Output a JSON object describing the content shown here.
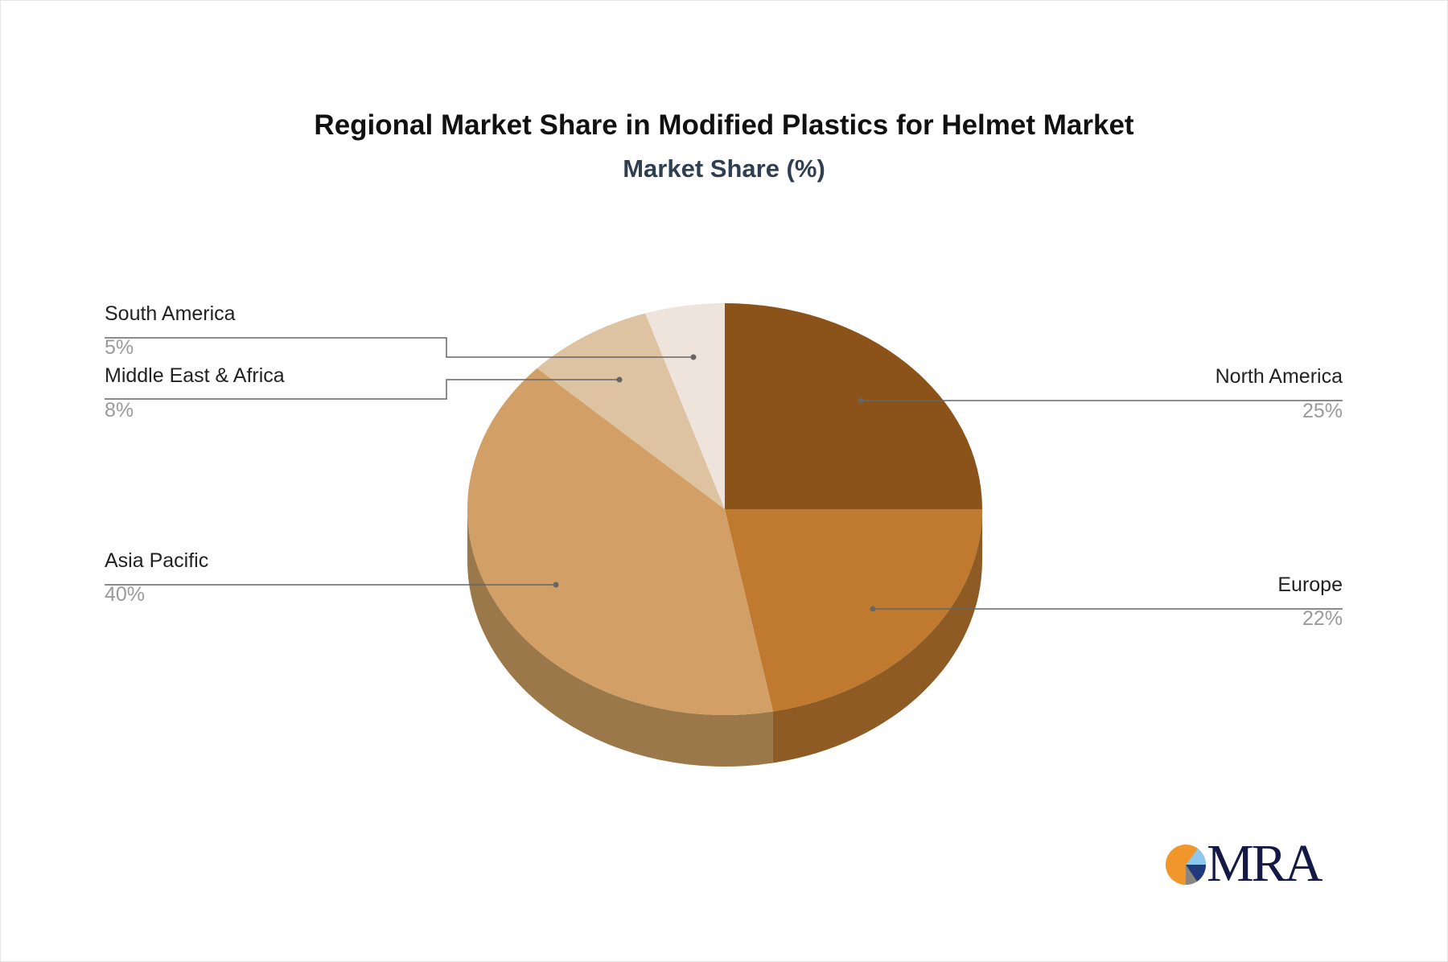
{
  "chart_data": {
    "type": "pie",
    "title": "Regional Market Share in Modified Plastics for Helmet Market",
    "subtitle": "Market Share (%)",
    "categories": [
      "North America",
      "Europe",
      "Asia Pacific",
      "Middle East & Africa",
      "South America"
    ],
    "values": [
      25,
      22,
      40,
      8,
      5
    ],
    "labels": [
      "25%",
      "22%",
      "40%",
      "8%",
      "5%"
    ],
    "colors": [
      "#8B5319",
      "#C07A2F",
      "#D2A066",
      "#DEC3A3",
      "#EEE4DC"
    ],
    "side_colors": [
      "#6f4214",
      "#8E5B24",
      "#9B784A",
      "#b29b82",
      "#c0b6ae"
    ],
    "style": "3d"
  },
  "logo": {
    "text": "MRA"
  }
}
